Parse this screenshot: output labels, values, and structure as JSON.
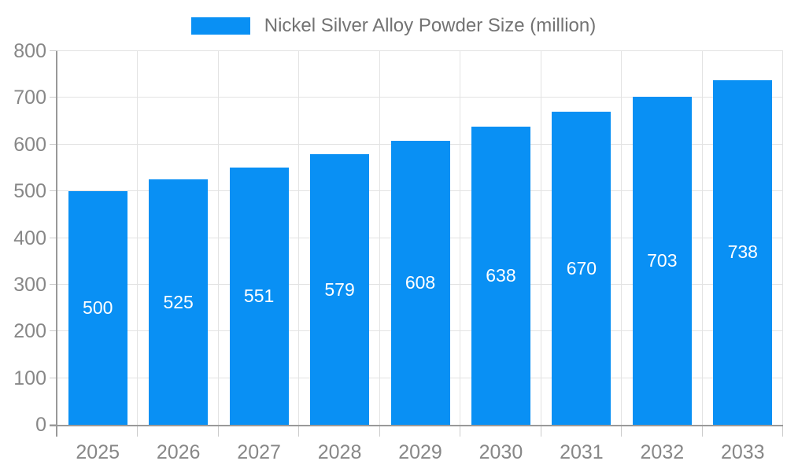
{
  "chart_data": {
    "type": "bar",
    "title": "Nickel Silver Alloy Powder Size (million)",
    "categories": [
      "2025",
      "2026",
      "2027",
      "2028",
      "2029",
      "2030",
      "2031",
      "2032",
      "2033"
    ],
    "values": [
      500,
      525,
      551,
      579,
      608,
      638,
      670,
      703,
      738
    ],
    "xlabel": "",
    "ylabel": "",
    "ylim": [
      0,
      800
    ],
    "yticks": [
      0,
      100,
      200,
      300,
      400,
      500,
      600,
      700,
      800
    ],
    "grid": true,
    "legend_position": "top",
    "value_label_position": "inside-center",
    "colors": {
      "bar": "#0990f4",
      "grid": "#e3e3e3",
      "tick": "#cccccc",
      "axis": "#999999",
      "axis_label": "#878787",
      "value_label": "#ffffff",
      "legend_label": "#737373",
      "background": "#ffffff"
    }
  }
}
